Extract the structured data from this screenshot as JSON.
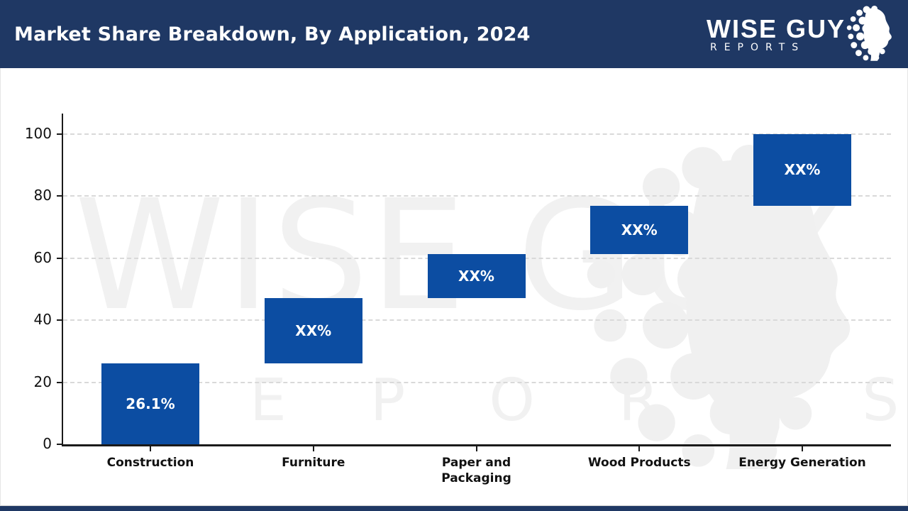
{
  "header": {
    "title": "Market Share Breakdown, By Application, 2024",
    "brand": {
      "line1": "WISE GUY",
      "line2": "REPORTS"
    }
  },
  "watermark": {
    "line1": "WISE GUY",
    "line2": "R E P O R T S"
  },
  "colors": {
    "header_bg": "#1F3864",
    "bar": "#0C4DA2",
    "watermark": "#F1F1F1",
    "grid": "#D9D9D9",
    "axis": "#1A1A1A",
    "text": "#111111",
    "label_on_bar": "#FFFFFF"
  },
  "chart_data": {
    "type": "bar",
    "subtype": "waterfall",
    "title": "Market Share Breakdown, By Application, 2024",
    "categories": [
      "Construction",
      "Furniture",
      "Paper and\nPackaging",
      "Wood Products",
      "Energy Generation"
    ],
    "segments": [
      {
        "category": "Construction",
        "start": 0,
        "end": 26.1,
        "label": "26.1%"
      },
      {
        "category": "Furniture",
        "start": 26.1,
        "end": 47.1,
        "label": "XX%"
      },
      {
        "category": "Paper and\nPackaging",
        "start": 47.1,
        "end": 61.3,
        "label": "XX%"
      },
      {
        "category": "Wood Products",
        "start": 61.3,
        "end": 76.9,
        "label": "XX%"
      },
      {
        "category": "Energy Generation",
        "start": 76.9,
        "end": 100,
        "label": "XX%"
      }
    ],
    "yticks": [
      0,
      20,
      40,
      60,
      80,
      100
    ],
    "ylim": [
      0,
      106.7
    ],
    "xlabel": "",
    "ylabel": "",
    "grid": "horizontal-dashed",
    "legend": "none",
    "bar_color": "#0C4DA2",
    "value_label_color": "#FFFFFF"
  }
}
